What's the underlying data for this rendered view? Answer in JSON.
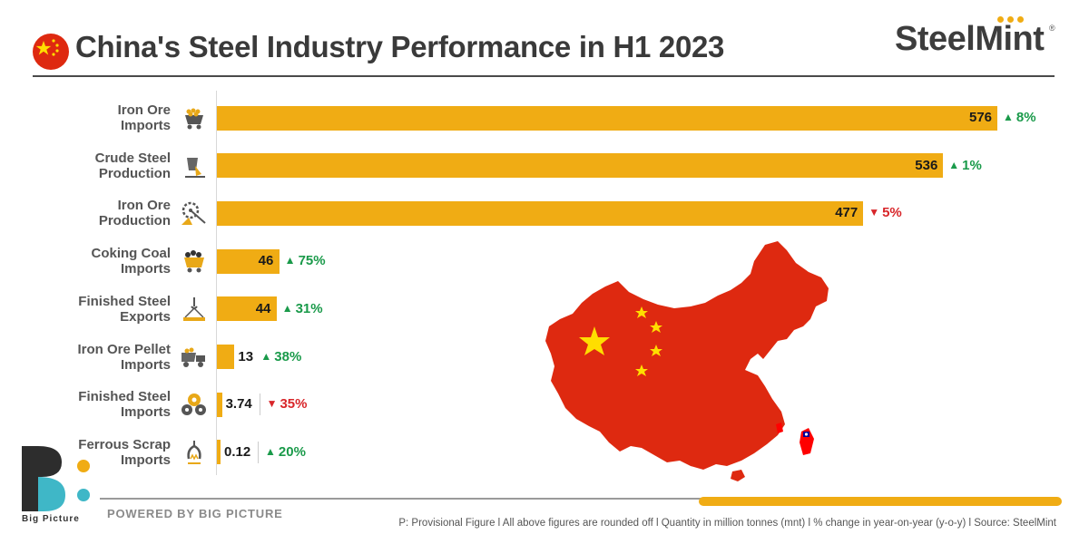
{
  "header": {
    "title": "China's Steel Industry Performance in H1 2023",
    "brand": "SteelMint"
  },
  "chart_data": {
    "type": "bar",
    "orientation": "horizontal",
    "unit_note": "Quantity in million tonnes (mnt)",
    "categories": [
      "Iron Ore Imports",
      "Crude Steel Production",
      "Iron Ore Production",
      "Coking Coal Imports",
      "Finished Steel Exports",
      "Iron Ore Pellet Imports",
      "Finished Steel Imports",
      "Ferrous Scrap Imports"
    ],
    "rows": [
      {
        "label_lines": [
          "Iron Ore",
          "Imports"
        ],
        "value": 576,
        "value_label": "576",
        "change": "8%",
        "direction": "up",
        "icon": "mine-cart-icon"
      },
      {
        "label_lines": [
          "Crude Steel",
          "Production"
        ],
        "value": 536,
        "value_label": "536",
        "change": "1%",
        "direction": "up",
        "icon": "ladle-icon"
      },
      {
        "label_lines": [
          "Iron Ore",
          "Production"
        ],
        "value": 477,
        "value_label": "477",
        "change": "5%",
        "direction": "down",
        "icon": "excavator-wheel-icon"
      },
      {
        "label_lines": [
          "Coking Coal",
          "Imports"
        ],
        "value": 46,
        "value_label": "46",
        "change": "75%",
        "direction": "up",
        "icon": "coal-cart-icon"
      },
      {
        "label_lines": [
          "Finished Steel",
          "Exports"
        ],
        "value": 44,
        "value_label": "44",
        "change": "31%",
        "direction": "up",
        "icon": "steel-beam-hook-icon"
      },
      {
        "label_lines": [
          "Iron Ore Pellet",
          "Imports"
        ],
        "value": 13,
        "value_label": "13",
        "change": "38%",
        "direction": "up",
        "icon": "dump-truck-icon"
      },
      {
        "label_lines": [
          "Finished Steel",
          "Imports"
        ],
        "value": 3.74,
        "value_label": "3.74",
        "change": "35%",
        "direction": "down",
        "icon": "steel-coils-icon"
      },
      {
        "label_lines": [
          "Ferrous Scrap",
          "Imports"
        ],
        "value": 0.12,
        "value_label": "0.12",
        "change": "20%",
        "direction": "up",
        "icon": "scrap-claw-icon"
      }
    ],
    "xlim": [
      0,
      576
    ],
    "grid": false,
    "legend": "none"
  },
  "colors": {
    "bar": "#f0ac14",
    "up": "#1a9a4a",
    "down": "#d8262a",
    "map_fill": "#de2910",
    "star": "#ffde00"
  },
  "footer": {
    "logo_caption": "Big Picture",
    "powered": "POWERED BY BIG PICTURE",
    "footnote": "P: Provisional Figure  l  All above figures are rounded off  l  Quantity in million tonnes (mnt)  l  % change in year-on-year (y-o-y)  l  Source: SteelMint"
  }
}
